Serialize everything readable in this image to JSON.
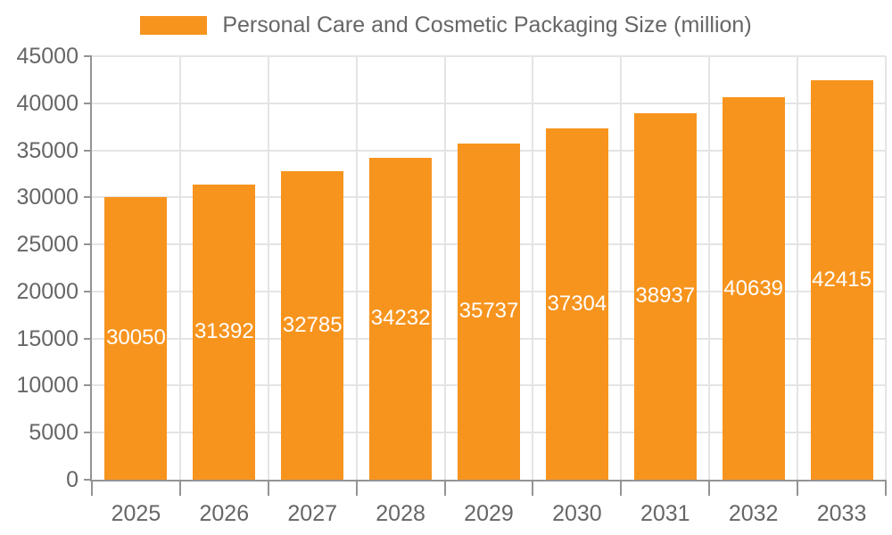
{
  "chart_data": {
    "type": "bar",
    "title": "Personal Care and Cosmetic Packaging Size (million)",
    "categories": [
      "2025",
      "2026",
      "2027",
      "2028",
      "2029",
      "2030",
      "2031",
      "2032",
      "2033"
    ],
    "values": [
      30050,
      31392,
      32785,
      34232,
      35737,
      37304,
      38937,
      40639,
      42415
    ],
    "xlabel": "",
    "ylabel": "",
    "ylim": [
      0,
      45000
    ],
    "ytick_step": 5000,
    "ytick_labels": [
      "0",
      "5000",
      "10000",
      "15000",
      "20000",
      "25000",
      "30000",
      "35000",
      "40000",
      "45000"
    ],
    "grid": "on",
    "legend_position": "top",
    "colors": {
      "bar": "#F7941E",
      "bar_label_text": "#FFFFFF",
      "axis_line": "#949494",
      "grid_line": "#E4E4E4",
      "axis_text": "#666666",
      "legend_text": "#666666",
      "background": "#FFFFFF"
    }
  }
}
